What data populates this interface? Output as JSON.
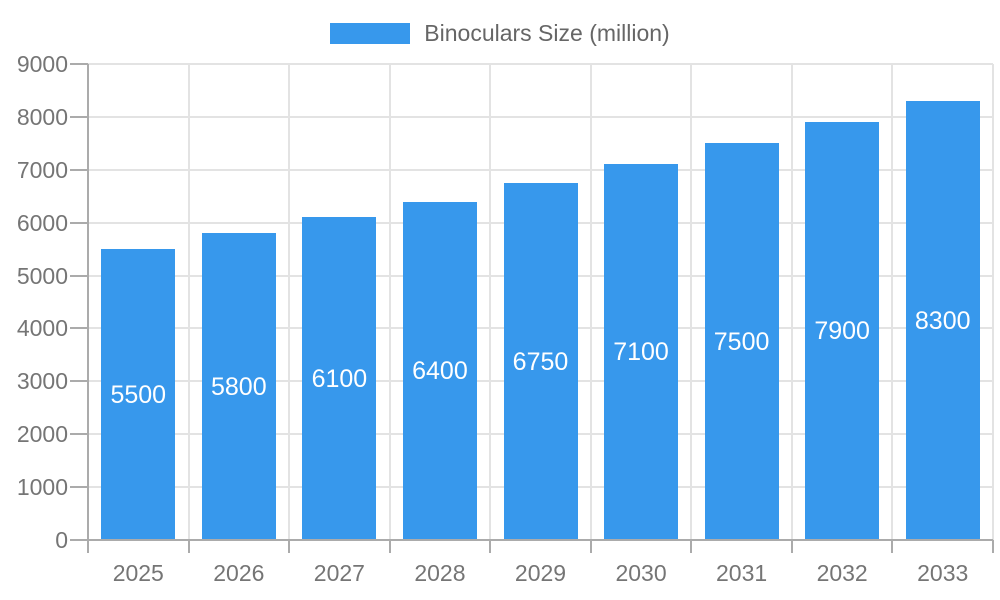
{
  "legend": {
    "series_label": "Binoculars Size (million)"
  },
  "colors": {
    "bar": "#3798EC",
    "gridline": "#e3e3e3",
    "axis": "#ababab",
    "axis_text": "#757575",
    "legend_text": "#666666",
    "bar_label_text": "#ffffff",
    "background": "#ffffff"
  },
  "chart_data": {
    "type": "bar",
    "title": "Binoculars Size (million)",
    "legend": [
      "Binoculars Size (million)"
    ],
    "legend_position": "top-center",
    "categories": [
      "2025",
      "2026",
      "2027",
      "2028",
      "2029",
      "2030",
      "2031",
      "2032",
      "2033"
    ],
    "values": [
      5500,
      5800,
      6100,
      6400,
      6750,
      7100,
      7500,
      7900,
      8300
    ],
    "bar_value_labels": [
      "5500",
      "5800",
      "6100",
      "6400",
      "6750",
      "7100",
      "7500",
      "7900",
      "8300"
    ],
    "xlabel": "",
    "ylabel": "",
    "ylim": [
      0,
      9000
    ],
    "ytick_step": 1000,
    "ytick_labels": [
      "0",
      "1000",
      "2000",
      "3000",
      "4000",
      "5000",
      "6000",
      "7000",
      "8000",
      "9000"
    ],
    "grid": true
  }
}
